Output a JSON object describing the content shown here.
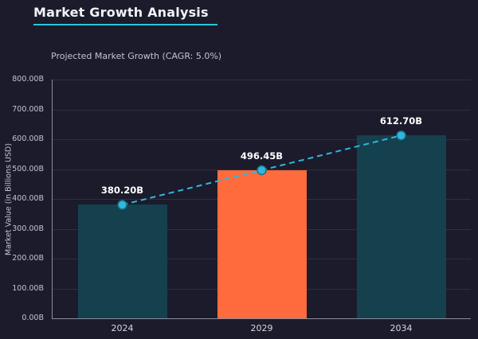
{
  "colors": {
    "background": "#1b1b2b",
    "accent_teal": "#29c5dc",
    "bar_teal": "#15414f",
    "bar_orange": "#ff6b3d",
    "trend_line": "#2eb8dc",
    "marker_edge": "#1b6d86",
    "grid": "rgba(255,255,255,0.09)",
    "axis": "#8d8d9c",
    "text_primary": "#f2f2f6",
    "text_muted": "#c4c4ce"
  },
  "chart_data": {
    "type": "bar",
    "title": "Market Growth Analysis",
    "subtitle": "Projected Market Growth (CAGR: 5.0%)",
    "ylabel": "Market Value (in Billions USD)",
    "categories": [
      "2024",
      "2029",
      "2034"
    ],
    "values": [
      380.2,
      496.45,
      612.7
    ],
    "value_labels": [
      "380.20B",
      "496.45B",
      "612.70B"
    ],
    "bar_colors": [
      "#15414f",
      "#ff6b3d",
      "#15414f"
    ],
    "line_overlay": {
      "style": "dashed",
      "color": "#2eb8dc",
      "marker": "circle"
    },
    "ylim": [
      0,
      800
    ],
    "ytick_step": 100,
    "ytick_labels": [
      "0.00B",
      "100.00B",
      "200.00B",
      "300.00B",
      "400.00B",
      "500.00B",
      "600.00B",
      "700.00B",
      "800.00B"
    ],
    "grid": true,
    "legend_position": "none"
  }
}
